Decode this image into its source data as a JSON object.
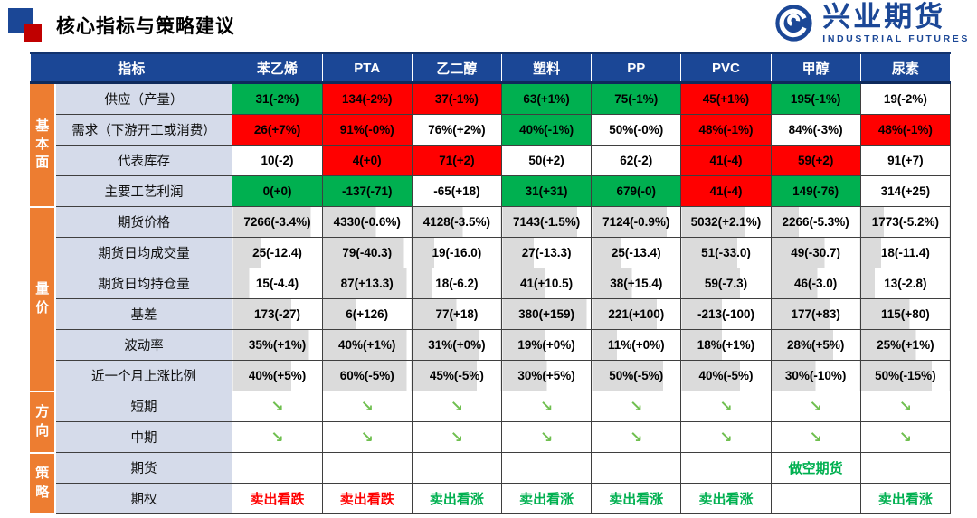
{
  "title": "核心指标与策略建议",
  "logo": {
    "cn": "兴业期货",
    "en": "INDUSTRIAL FUTURES"
  },
  "icons": {
    "down_right_arrow": "↘",
    "swirl_logo": "swirl-g"
  },
  "colors": {
    "header_bg": "#1B4796",
    "group_bg": "#ED7D31",
    "label_bg": "#D5DBEA",
    "green_bg": "#00B050",
    "red_bg": "#FF0000",
    "bar_gray": "#DBDBDB",
    "green_text": "#00B050",
    "red_text": "#FF0000",
    "arrow_green": "#6FBF4F",
    "brand_blue": "#1B4796",
    "brand_red": "#C00000"
  },
  "table": {
    "header": [
      "指标",
      "苯乙烯",
      "PTA",
      "乙二醇",
      "塑料",
      "PP",
      "PVC",
      "甲醇",
      "尿素"
    ],
    "col_ids": [
      "styrene",
      "pta",
      "meg",
      "plastic",
      "pp",
      "pvc",
      "methanol",
      "urea"
    ],
    "sections": [
      {
        "id": "fundamentals",
        "label": "基本面",
        "rows": [
          {
            "id": "supply",
            "label": "供应（产量）",
            "cells": [
              {
                "t": "31(-2%)",
                "bg": "g"
              },
              {
                "t": "134(-2%)",
                "bg": "r"
              },
              {
                "t": "37(-1%)",
                "bg": "r"
              },
              {
                "t": "63(+1%)",
                "bg": "g"
              },
              {
                "t": "75(-1%)",
                "bg": "g"
              },
              {
                "t": "45(+1%)",
                "bg": "r"
              },
              {
                "t": "195(-1%)",
                "bg": "g"
              },
              {
                "t": "19(-2%)"
              }
            ]
          },
          {
            "id": "demand",
            "label": "需求（下游开工或消费）",
            "cells": [
              {
                "t": "26(+7%)",
                "bg": "r"
              },
              {
                "t": "91%(-0%)",
                "bg": "r"
              },
              {
                "t": "76%(+2%)"
              },
              {
                "t": "40%(-1%)",
                "bg": "g"
              },
              {
                "t": "50%(-0%)"
              },
              {
                "t": "48%(-1%)",
                "bg": "r"
              },
              {
                "t": "84%(-3%)"
              },
              {
                "t": "48%(-1%)",
                "bg": "r"
              }
            ]
          },
          {
            "id": "inventory",
            "label": "代表库存",
            "cells": [
              {
                "t": "10(-2)"
              },
              {
                "t": "4(+0)",
                "bg": "r"
              },
              {
                "t": "71(+2)",
                "bg": "r"
              },
              {
                "t": "50(+2)"
              },
              {
                "t": "62(-2)"
              },
              {
                "t": "41(-4)",
                "bg": "r"
              },
              {
                "t": "59(+2)",
                "bg": "r"
              },
              {
                "t": "91(+7)"
              }
            ]
          },
          {
            "id": "process-profit",
            "label": "主要工艺利润",
            "cells": [
              {
                "t": "0(+0)",
                "bg": "g"
              },
              {
                "t": "-137(-71)",
                "bg": "g"
              },
              {
                "t": "-65(+18)"
              },
              {
                "t": "31(+31)",
                "bg": "g"
              },
              {
                "t": "679(-0)",
                "bg": "g"
              },
              {
                "t": "41(-4)",
                "bg": "r"
              },
              {
                "t": "149(-76)",
                "bg": "g"
              },
              {
                "t": "314(+25)"
              }
            ]
          }
        ]
      },
      {
        "id": "volume-price",
        "label": "量价",
        "rows": [
          {
            "id": "futures-price",
            "label": "期货价格",
            "cells": [
              {
                "t": "7266(-3.4%)",
                "bar": 0.87
              },
              {
                "t": "4330(-0.6%)",
                "bar": 0.6
              },
              {
                "t": "4128(-3.5%)",
                "bar": 0.57
              },
              {
                "t": "7143(-1.5%)",
                "bar": 0.84
              },
              {
                "t": "7124(-0.9%)",
                "bar": 0.84
              },
              {
                "t": "5032(+2.1%)",
                "bar": 0.7
              },
              {
                "t": "2266(-5.3%)",
                "bar": 0.31
              },
              {
                "t": "1773(-5.2%)",
                "bar": 0.26
              }
            ]
          },
          {
            "id": "avg-daily-volume",
            "label": "期货日均成交量",
            "cells": [
              {
                "t": "25(-12.4)",
                "bar": 0.32
              },
              {
                "t": "79(-40.3)",
                "bar": 0.92
              },
              {
                "t": "19(-16.0)",
                "bar": 0.25
              },
              {
                "t": "27(-13.3)",
                "bar": 0.35
              },
              {
                "t": "25(-13.4)",
                "bar": 0.32
              },
              {
                "t": "51(-33.0)",
                "bar": 0.62
              },
              {
                "t": "49(-30.7)",
                "bar": 0.6
              },
              {
                "t": "18(-11.4)",
                "bar": 0.23
              }
            ]
          },
          {
            "id": "avg-open-interest",
            "label": "期货日均持仓量",
            "cells": [
              {
                "t": "15(-4.4)",
                "bar": 0.18
              },
              {
                "t": "87(+13.3)",
                "bar": 0.95
              },
              {
                "t": "18(-6.2)",
                "bar": 0.22
              },
              {
                "t": "41(+10.5)",
                "bar": 0.48
              },
              {
                "t": "38(+15.4)",
                "bar": 0.45
              },
              {
                "t": "59(-7.3)",
                "bar": 0.65
              },
              {
                "t": "46(-3.0)",
                "bar": 0.52
              },
              {
                "t": "13(-2.8)",
                "bar": 0.16
              }
            ]
          },
          {
            "id": "basis",
            "label": "基差",
            "cells": [
              {
                "t": "173(-27)",
                "bar": 0.65
              },
              {
                "t": "6(+126)",
                "bar": 0.38
              },
              {
                "t": "77(+18)",
                "bar": 0.5
              },
              {
                "t": "380(+159)",
                "bar": 0.95
              },
              {
                "t": "221(+100)",
                "bar": 0.73
              },
              {
                "t": "-213(-100)",
                "bar": 0.45
              },
              {
                "t": "177(+83)",
                "bar": 0.66
              },
              {
                "t": "115(+80)",
                "bar": 0.55
              }
            ]
          },
          {
            "id": "volatility",
            "label": "波动率",
            "cells": [
              {
                "t": "35%(+1%)",
                "bar": 0.85
              },
              {
                "t": "40%(+1%)",
                "bar": 0.95
              },
              {
                "t": "31%(+0%)",
                "bar": 0.76
              },
              {
                "t": "19%(+0%)",
                "bar": 0.48
              },
              {
                "t": "11%(+0%)",
                "bar": 0.28
              },
              {
                "t": "18%(+1%)",
                "bar": 0.45
              },
              {
                "t": "28%(+5%)",
                "bar": 0.7
              },
              {
                "t": "25%(+1%)",
                "bar": 0.62
              }
            ]
          },
          {
            "id": "monthly-up-ratio",
            "label": "近一个月上涨比例",
            "cells": [
              {
                "t": "40%(+5%)",
                "bar": 0.65
              },
              {
                "t": "60%(-5%)",
                "bar": 0.95
              },
              {
                "t": "45%(-5%)",
                "bar": 0.73
              },
              {
                "t": "30%(+5%)",
                "bar": 0.5
              },
              {
                "t": "50%(-5%)",
                "bar": 0.8
              },
              {
                "t": "40%(-5%)",
                "bar": 0.65
              },
              {
                "t": "30%(-10%)",
                "bar": 0.5
              },
              {
                "t": "50%(-15%)",
                "bar": 0.8
              }
            ]
          }
        ]
      },
      {
        "id": "direction",
        "label": "方向",
        "rows": [
          {
            "id": "short-term",
            "label": "短期",
            "cells": [
              {
                "ar": true
              },
              {
                "ar": true
              },
              {
                "ar": true
              },
              {
                "ar": true
              },
              {
                "ar": true
              },
              {
                "ar": true
              },
              {
                "ar": true
              },
              {
                "ar": true
              }
            ]
          },
          {
            "id": "mid-term",
            "label": "中期",
            "cells": [
              {
                "ar": true
              },
              {
                "ar": true
              },
              {
                "ar": true
              },
              {
                "ar": true
              },
              {
                "ar": true
              },
              {
                "ar": true
              },
              {
                "ar": true
              },
              {
                "ar": true
              }
            ]
          }
        ]
      },
      {
        "id": "strategy",
        "label": "策略",
        "rows": [
          {
            "id": "futures-strategy",
            "label": "期货",
            "cells": [
              {
                "t": ""
              },
              {
                "t": ""
              },
              {
                "t": ""
              },
              {
                "t": ""
              },
              {
                "t": ""
              },
              {
                "t": ""
              },
              {
                "t": "做空期货",
                "fg": "green"
              },
              {
                "t": ""
              }
            ]
          },
          {
            "id": "options-strategy",
            "label": "期权",
            "cells": [
              {
                "t": "卖出看跌",
                "fg": "red"
              },
              {
                "t": "卖出看跌",
                "fg": "red"
              },
              {
                "t": "卖出看涨",
                "fg": "green"
              },
              {
                "t": "卖出看涨",
                "fg": "green"
              },
              {
                "t": "卖出看涨",
                "fg": "green"
              },
              {
                "t": "卖出看涨",
                "fg": "green"
              },
              {
                "t": ""
              },
              {
                "t": "卖出看涨",
                "fg": "green"
              }
            ]
          }
        ]
      }
    ]
  }
}
